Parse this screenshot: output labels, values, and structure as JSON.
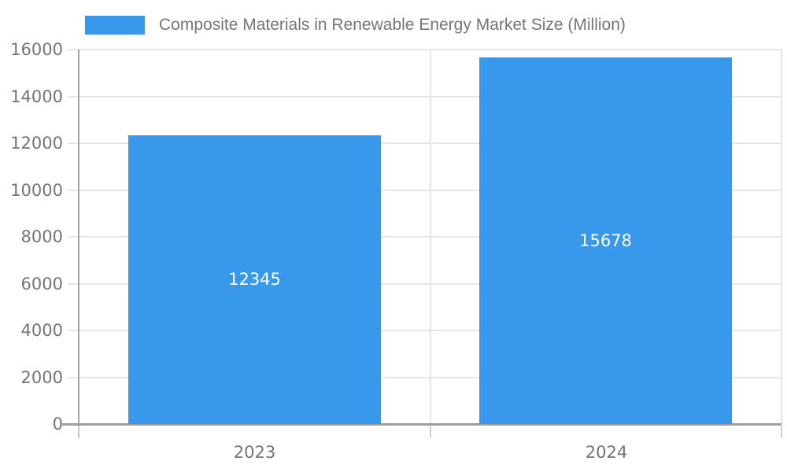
{
  "legend": {
    "label": "Composite Materials in Renewable Energy Market Size (Million)"
  },
  "chart_data": {
    "type": "bar",
    "title": "Composite Materials in Renewable Energy Market Size (Million)",
    "categories": [
      "2023",
      "2024"
    ],
    "values": [
      12345,
      15678
    ],
    "xlabel": "",
    "ylabel": "",
    "ylim": [
      0,
      16000
    ],
    "yticks": [
      0,
      2000,
      4000,
      6000,
      8000,
      10000,
      12000,
      14000,
      16000
    ],
    "grid": true,
    "legend_position": "top-left",
    "bar_labels_visible": true,
    "colors": {
      "bar": "#3899ec",
      "value_label": "#ffffff",
      "axis_text": "#757575",
      "gridline": "#e6e6e6",
      "axis_line": "#9e9e9e",
      "minor_tick": "#cfcfcf"
    }
  }
}
